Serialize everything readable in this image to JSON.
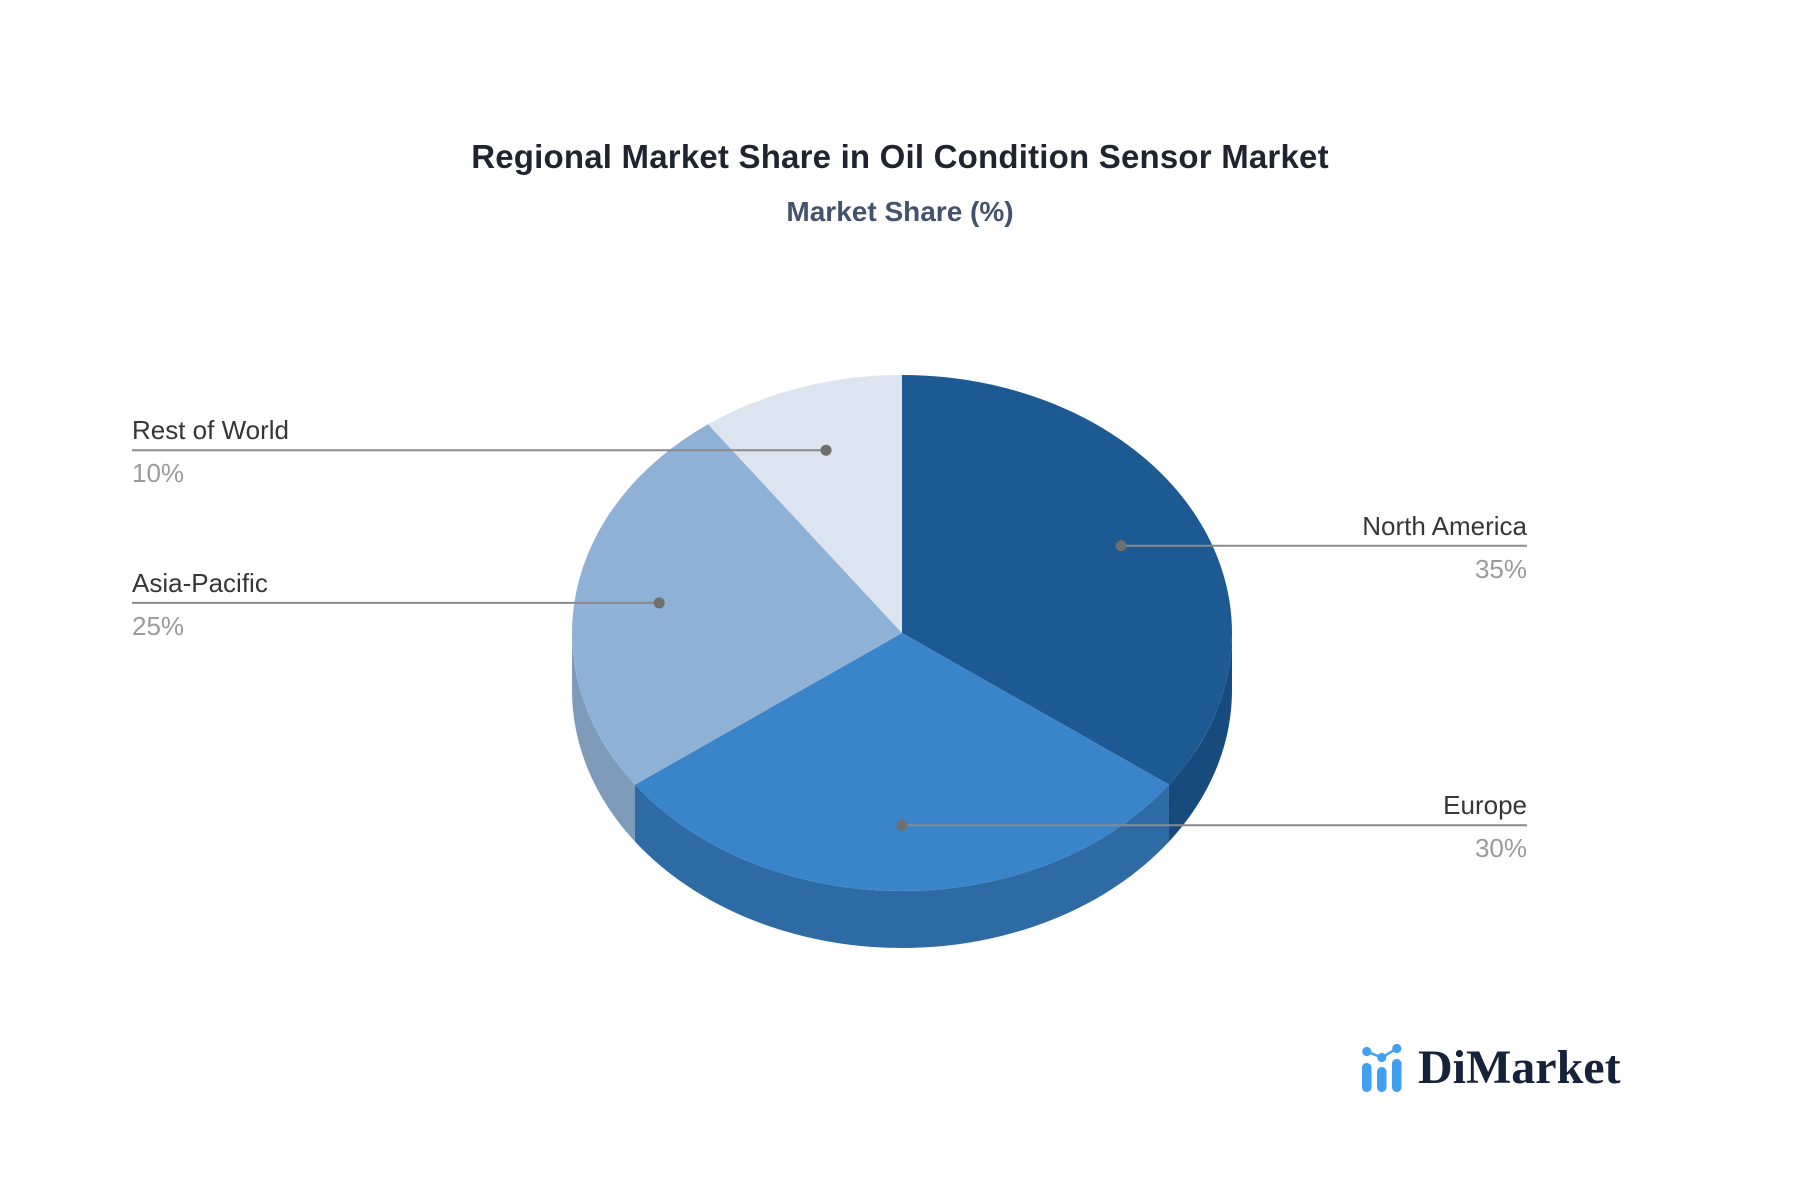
{
  "title": "Regional Market Share in Oil Condition Sensor Market",
  "subtitle": "Market Share (%)",
  "chart_data": {
    "type": "pie",
    "style": "3d-extruded",
    "title": "Regional Market Share in Oil Condition Sensor Market",
    "subtitle": "Market Share (%)",
    "unit": "%",
    "start_angle_deg": 0,
    "direction": "clockwise",
    "legend_position": "callout-labels",
    "categories": [
      "North America",
      "Europe",
      "Asia-Pacific",
      "Rest of World"
    ],
    "values": [
      35,
      30,
      25,
      10
    ],
    "slices": [
      {
        "label": "North America",
        "value": 35,
        "display": "35%",
        "color": "#1D5A94",
        "side_color": "#174B7E",
        "label_side": "right"
      },
      {
        "label": "Europe",
        "value": 30,
        "display": "30%",
        "color": "#3A85C9",
        "side_color": "#2E6BA4",
        "label_side": "right"
      },
      {
        "label": "Asia-Pacific",
        "value": 25,
        "display": "25%",
        "color": "#8FB1D6",
        "side_color": "#7E9BBA",
        "label_side": "left"
      },
      {
        "label": "Rest of World",
        "value": 10,
        "display": "10%",
        "color": "#DCE4EF",
        "side_color": "#B9C4D6",
        "label_side": "left"
      }
    ]
  },
  "callout_style": {
    "line_color": "#8A8A8A",
    "dot_color": "#6F6F6F"
  },
  "logo": {
    "text": "DiMarket",
    "icon": "bar-line-chart-icon",
    "icon_color": "#42A0F4",
    "text_color": "#16213A"
  }
}
